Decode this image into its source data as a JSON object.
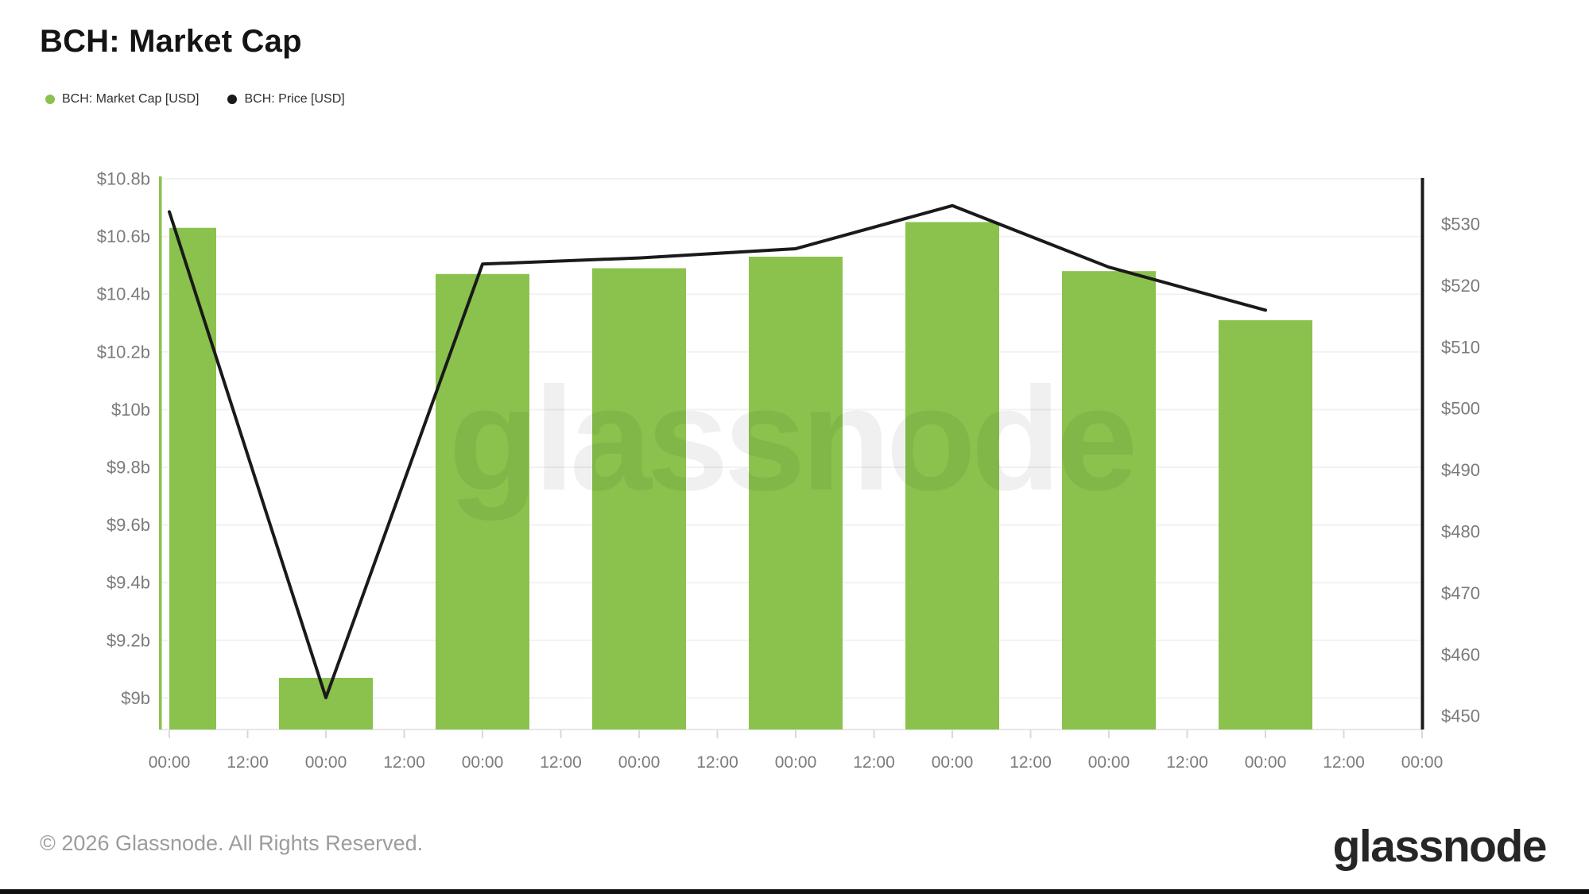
{
  "page": {
    "title": "BCH: Market Cap",
    "footer": "© 2026 Glassnode. All Rights Reserved.",
    "brand_logo": "glassnode",
    "watermark": "glassnode"
  },
  "legend": {
    "items": [
      {
        "label": "BCH: Market Cap [USD]",
        "color": "#8AC24D"
      },
      {
        "label": "BCH: Price [USD]",
        "color": "#1a1a1a"
      }
    ]
  },
  "chart_data": {
    "type": "combo",
    "title": "BCH: Market Cap",
    "xlabel": "",
    "ylabel_left": "BCH: Market Cap [USD]",
    "ylabel_right": "BCH: Price [USD]",
    "grid": "horizontal",
    "legend_position": "top-left",
    "x_tick_labels": [
      "00:00",
      "12:00",
      "00:00",
      "12:00",
      "00:00",
      "12:00",
      "00:00",
      "12:00",
      "00:00",
      "12:00",
      "00:00",
      "12:00",
      "00:00",
      "12:00",
      "00:00",
      "12:00",
      "00:00"
    ],
    "series": [
      {
        "name": "BCH: Market Cap [USD]",
        "type": "bar",
        "axis": "left",
        "color": "#8AC24D",
        "unit": "billion USD",
        "values": [
          10.63,
          9.07,
          10.47,
          10.49,
          10.53,
          10.65,
          10.48,
          10.31
        ]
      },
      {
        "name": "BCH: Price [USD]",
        "type": "line",
        "axis": "right",
        "color": "#1a1a1a",
        "unit": "USD",
        "values": [
          532,
          453,
          523.5,
          524.5,
          526,
          533,
          523,
          516
        ]
      }
    ],
    "left_axis": {
      "tick_labels": [
        "$10.8b",
        "$10.6b",
        "$10.4b",
        "$10.2b",
        "$10b",
        "$9.8b",
        "$9.6b",
        "$9.4b",
        "$9.2b",
        "$9b"
      ],
      "tick_values": [
        10.8,
        10.6,
        10.4,
        10.2,
        10.0,
        9.8,
        9.6,
        9.4,
        9.2,
        9.0
      ],
      "range": [
        8.89,
        10.81
      ]
    },
    "right_axis": {
      "tick_labels": [
        "$530",
        "$520",
        "$510",
        "$500",
        "$490",
        "$480",
        "$470",
        "$460",
        "$450"
      ],
      "tick_values": [
        530,
        520,
        510,
        500,
        490,
        480,
        470,
        460,
        450
      ],
      "range": [
        447.8,
        537.8
      ]
    },
    "colors": {
      "grid": "#f2f2f2",
      "baseline": "#e7e7e7",
      "tick_mark": "#d9d9d9",
      "axis_text": "#7b7b7b",
      "left_axis_line": "#8AC24D",
      "right_axis_line": "#1a1a1a"
    }
  }
}
